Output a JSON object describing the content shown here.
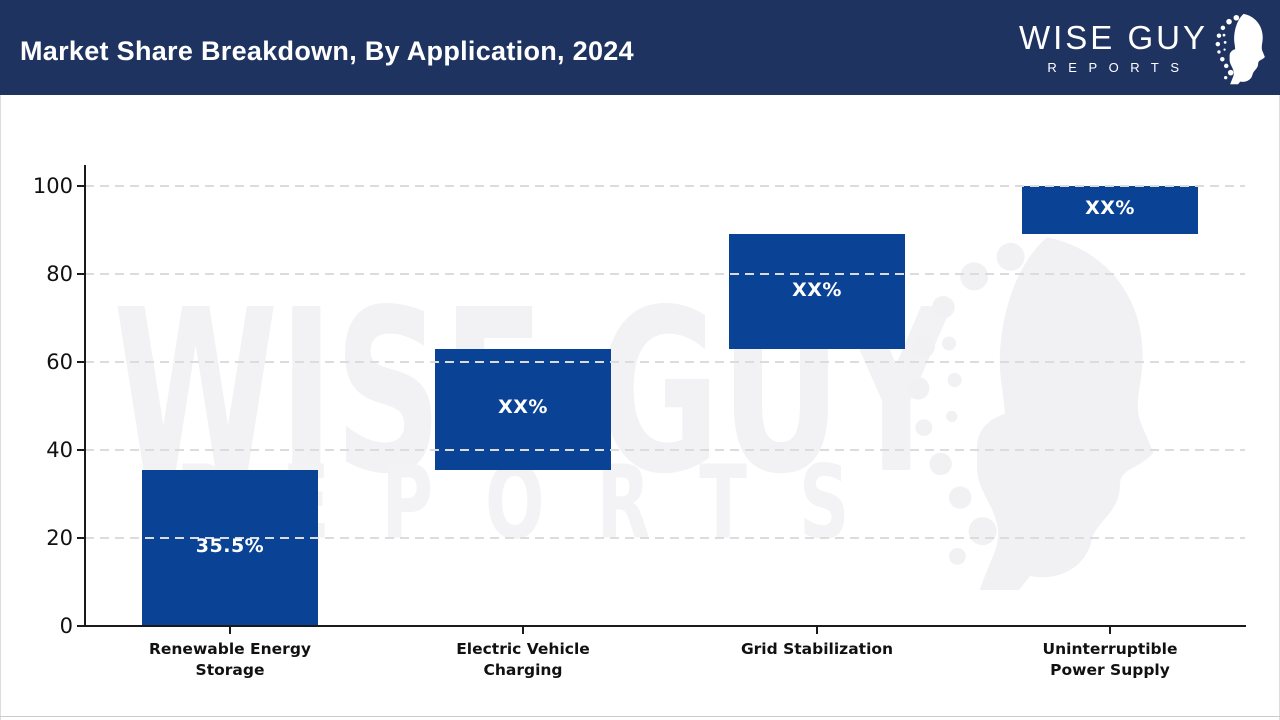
{
  "header": {
    "title": "Market Share Breakdown, By Application, 2024",
    "bg_color": "#1f3361",
    "logo": {
      "line1": "WISE GUY",
      "line2": "REPORTS"
    }
  },
  "watermark": {
    "line1": "WISE GUY",
    "line2": "REPORTS"
  },
  "chart_data": {
    "type": "bar",
    "variant": "waterfall",
    "title": "Market Share Breakdown, By Application, 2024",
    "categories": [
      "Renewable Energy Storage",
      "Electric Vehicle Charging",
      "Grid Stabilization",
      "Uninterruptible Power Supply"
    ],
    "category_lines": [
      [
        "Renewable Energy",
        "Storage"
      ],
      [
        "Electric Vehicle",
        "Charging"
      ],
      [
        "Grid Stabilization"
      ],
      [
        "Uninterruptible",
        "Power Supply"
      ]
    ],
    "segments": [
      {
        "category": "Renewable Energy Storage",
        "start": 0,
        "end": 35.5,
        "label": "35.5%"
      },
      {
        "category": "Electric Vehicle Charging",
        "start": 35.5,
        "end": 63,
        "label": "XX%"
      },
      {
        "category": "Grid Stabilization",
        "start": 63,
        "end": 89,
        "label": "XX%"
      },
      {
        "category": "Uninterruptible Power Supply",
        "start": 89,
        "end": 100,
        "label": "XX%"
      }
    ],
    "xlabel": "",
    "ylabel": "",
    "yticks": [
      0,
      20,
      40,
      60,
      80,
      100
    ],
    "ylim": [
      0,
      105
    ],
    "grid": "dashed-horizontal",
    "legend": "none",
    "bar_color": "#0a4296",
    "bar_label_color": "#ffffff",
    "axis_color": "#1a1a1a"
  }
}
